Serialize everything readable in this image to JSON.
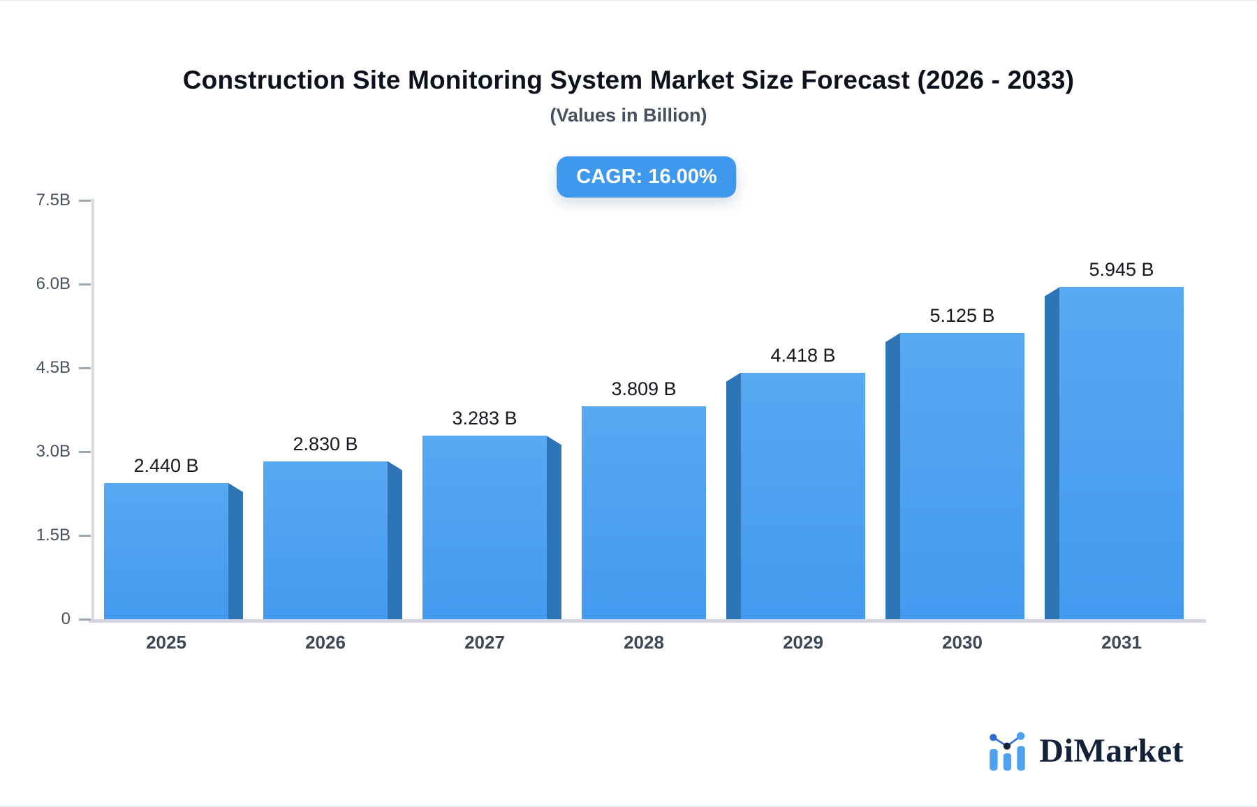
{
  "header": {
    "title": "Construction Site Monitoring System Market Size Forecast (2026 - 2033)",
    "subtitle": "(Values in Billion)",
    "cagr_label": "CAGR: 16.00%"
  },
  "chart_data": {
    "type": "bar",
    "title": "Construction Site Monitoring System Market Size Forecast (2026 - 2033)",
    "subtitle": "(Values in Billion)",
    "cagr_percent": 16.0,
    "categories": [
      "2025",
      "2026",
      "2027",
      "2028",
      "2029",
      "2030",
      "2031"
    ],
    "values": [
      2.44,
      2.83,
      3.283,
      3.809,
      4.418,
      5.125,
      5.945
    ],
    "value_labels": [
      "2.440 B",
      "2.830 B",
      "3.283 B",
      "3.809 B",
      "4.418 B",
      "5.125 B",
      "5.945 B"
    ],
    "y_ticks": [
      {
        "value": 0,
        "label": "0"
      },
      {
        "value": 1.5,
        "label": "1.5B"
      },
      {
        "value": 3.0,
        "label": "3.0B"
      },
      {
        "value": 4.5,
        "label": "4.5B"
      },
      {
        "value": 6.0,
        "label": "6.0B"
      },
      {
        "value": 7.5,
        "label": "7.5B"
      }
    ],
    "ylim": [
      0,
      7.5
    ],
    "grid": false,
    "legend": false,
    "bar_3d_side": [
      "right",
      "right",
      "right",
      "none",
      "left",
      "left",
      "left"
    ],
    "colors": {
      "bar_face_top": "#58a8f2",
      "bar_face_bottom": "#449aef",
      "bar_side": "#2e75b6",
      "badge_bg": "#3e98ed",
      "badge_text": "#ffffff",
      "axis": "#d7dbdf",
      "tick_text": "#46505e",
      "value_label": "#14181e",
      "title": "#0c111d",
      "subtitle": "#454f5e",
      "logo_bar_blue": "#4da2f2",
      "logo_line_blue": "#2f6bd0",
      "logo_text_navy": "#14213a"
    }
  },
  "footer": {
    "brand_name": "DiMarket",
    "brand_icon": "dimarket-chart-logo-icon"
  }
}
